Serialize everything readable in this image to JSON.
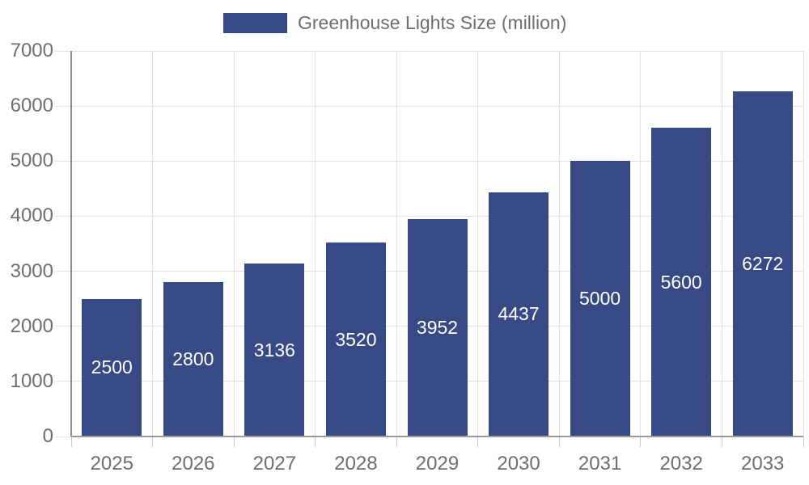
{
  "chart_data": {
    "type": "bar",
    "title": "",
    "series_name": "Greenhouse Lights Size (million)",
    "categories": [
      "2025",
      "2026",
      "2027",
      "2028",
      "2029",
      "2030",
      "2031",
      "2032",
      "2033"
    ],
    "values": [
      2500,
      2800,
      3136,
      3520,
      3952,
      4437,
      5000,
      5600,
      6272
    ],
    "xlabel": "",
    "ylabel": "",
    "ylim": [
      0,
      7000
    ],
    "yticks": [
      0,
      1000,
      2000,
      3000,
      4000,
      5000,
      6000,
      7000
    ],
    "grid": true,
    "legend_position": "top",
    "bar_labels_inside": true,
    "colors": {
      "bar": "#374a85",
      "bar_label": "#ffffff",
      "axis_text": "#6e6e6e",
      "legend_text": "#6e6e6e",
      "gridline": "#e2e2e2",
      "axis_line": "#8d8d8d",
      "tick": "#c9c9c9"
    }
  }
}
